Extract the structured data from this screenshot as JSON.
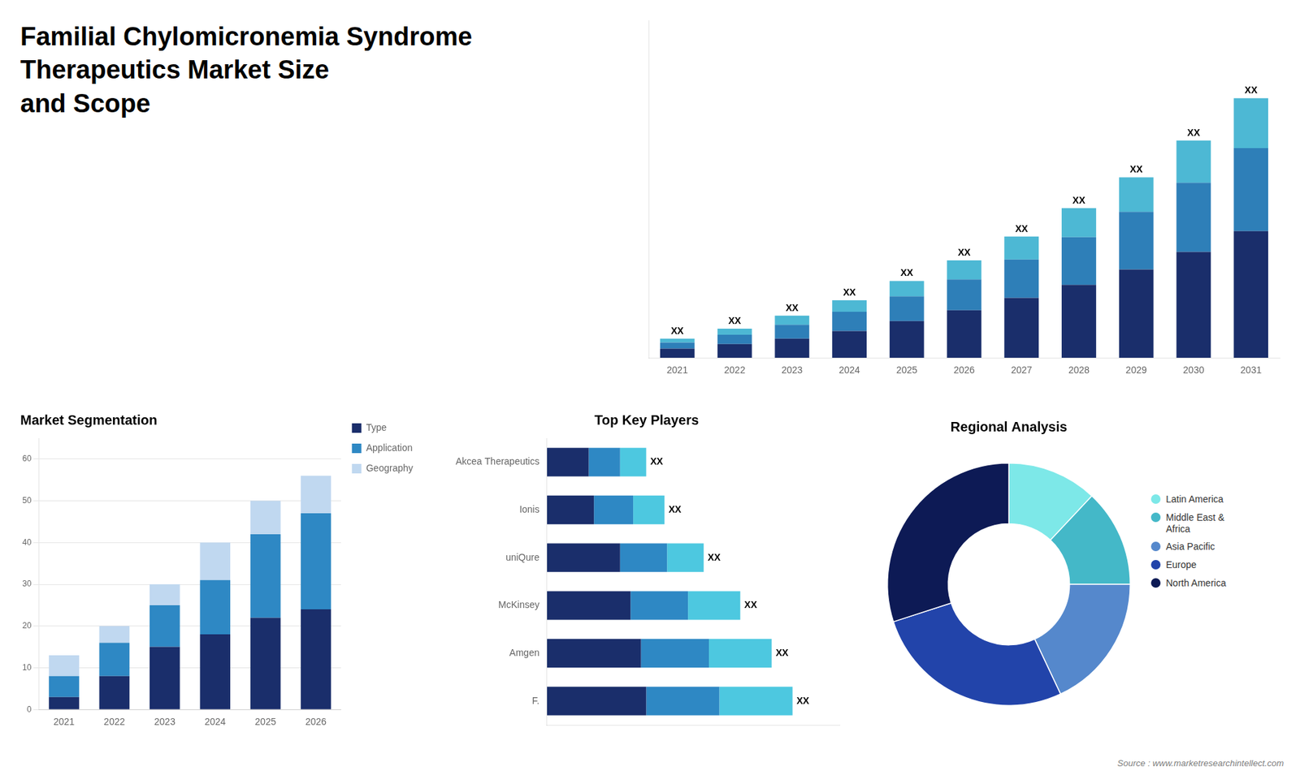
{
  "title": "Familial Chylomicronemia Syndrome Therapeutics Market Size\nand Scope",
  "annotations": [
    "Source : www.marketresearchintellect.com"
  ],
  "chart_data": [
    {
      "type": "bar",
      "stacked": true,
      "categories": [
        "2021",
        "2022",
        "2023",
        "2024",
        "2025",
        "2026",
        "2027",
        "2028",
        "2029",
        "2030",
        "2031"
      ],
      "series": [
        {
          "color": "#1a2e6b",
          "values": [
            1.2,
            1.8,
            2.5,
            3.5,
            4.8,
            6.2,
            7.8,
            9.5,
            11.5,
            13.8,
            16.5
          ]
        },
        {
          "color": "#2e7fb8",
          "values": [
            0.8,
            1.2,
            1.8,
            2.5,
            3.2,
            4.0,
            5.0,
            6.2,
            7.5,
            9.0,
            10.8
          ]
        },
        {
          "color": "#4db8d4",
          "values": [
            0.5,
            0.8,
            1.2,
            1.5,
            2.0,
            2.5,
            3.0,
            3.8,
            4.5,
            5.5,
            6.5
          ],
          "value_labels": [
            "XX",
            "XX",
            "XX",
            "XX",
            "XX",
            "XX",
            "XX",
            "XX",
            "XX",
            "XX",
            "XX"
          ]
        }
      ],
      "ylim": [
        0,
        43.94
      ],
      "yticks": [],
      "tick_labels": "x",
      "grid": false
    },
    {
      "type": "bar",
      "stacked": true,
      "title": "Market Segmentation",
      "categories": [
        "2021",
        "2022",
        "2023",
        "2024",
        "2025",
        "2026"
      ],
      "series": [
        {
          "name": "Type",
          "color": "#1a2e6b",
          "values": [
            3,
            8,
            15,
            18,
            22,
            24
          ]
        },
        {
          "name": "Application",
          "color": "#2e88c4",
          "values": [
            5,
            8,
            10,
            13,
            20,
            23
          ]
        },
        {
          "name": "Geography",
          "color": "#c0d8f0",
          "values": [
            5,
            4,
            5,
            9,
            8,
            9
          ]
        }
      ],
      "ylim": [
        0,
        65
      ],
      "yticks": [
        0,
        10,
        20,
        30,
        40,
        50,
        60
      ],
      "grid": "y",
      "legend": "right"
    },
    {
      "type": "bar",
      "orientation": "horizontal",
      "stacked": true,
      "title": "Top Key Players",
      "categories": [
        "F.",
        "Amgen",
        "McKinsey",
        "uniQure",
        "Ionis",
        "Akcea Therapeutics"
      ],
      "series": [
        {
          "color": "#1a2e6b",
          "values": [
            0.38,
            0.36,
            0.32,
            0.28,
            0.18,
            0.16
          ]
        },
        {
          "color": "#2e88c4",
          "values": [
            0.28,
            0.26,
            0.22,
            0.18,
            0.15,
            0.12
          ]
        },
        {
          "color": "#4dc8e0",
          "values": [
            0.28,
            0.24,
            0.2,
            0.14,
            0.12,
            0.1
          ],
          "value_labels": [
            "XX",
            "XX",
            "XX",
            "XX",
            "XX",
            "XX"
          ]
        }
      ],
      "xlim": [
        0,
        1.12
      ],
      "xticks": [],
      "tick_labels": "y",
      "grid": false
    },
    {
      "type": "doughnut",
      "title": "Regional Analysis",
      "categories": [
        "Latin America",
        "Middle East &\nAfrica",
        "Asia Pacific",
        "Europe",
        "North America"
      ],
      "values": [
        12,
        13,
        18,
        27,
        30
      ],
      "colors": [
        "#7de8e8",
        "#44b8c8",
        "#5588cc",
        "#2244aa",
        "#0d1a55"
      ],
      "legend": "right"
    }
  ]
}
